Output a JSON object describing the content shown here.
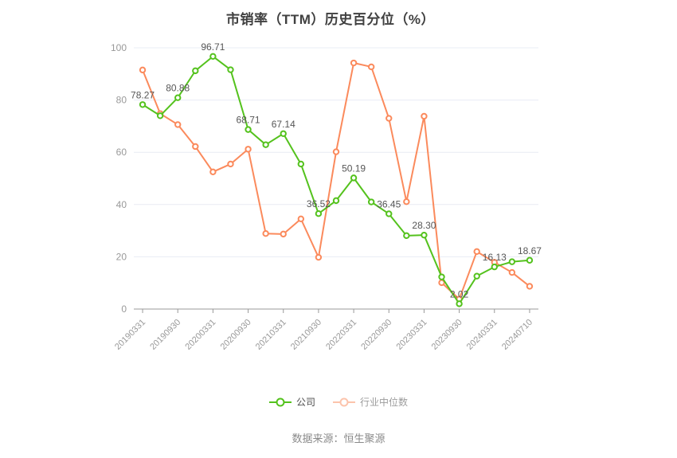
{
  "title": "市销率（TTM）历史百分位（%）",
  "source_note": "数据来源：恒生聚源",
  "legend": [
    {
      "label": "公司",
      "color": "#54c21d",
      "muted": false
    },
    {
      "label": "行业中位数",
      "color": "#fb8a5c",
      "muted": true
    }
  ],
  "chart_data": {
    "type": "line",
    "title": "市销率（TTM）历史百分位（%）",
    "xlabel": "",
    "ylabel": "",
    "ylim": [
      0,
      100
    ],
    "yticks": [
      0,
      20,
      40,
      60,
      80,
      100
    ],
    "grid": true,
    "legend_position": "bottom",
    "x_tick_labels": [
      "20190331",
      "20190930",
      "20200331",
      "20200930",
      "20210331",
      "20210930",
      "20220331",
      "20220930",
      "20230331",
      "20230930",
      "20240331",
      "20240710"
    ],
    "x_points_per_tick": 2,
    "n_points": 23,
    "point_label_indices": [
      0,
      2,
      4,
      6,
      8,
      10,
      12,
      14,
      16,
      18,
      20,
      22
    ],
    "series": [
      {
        "name": "行业中位数",
        "color": "#fb8a5c",
        "values": [
          91.5,
          74.8,
          70.6,
          62.2,
          52.5,
          55.5,
          61.2,
          28.9,
          28.7,
          34.5,
          19.8,
          60.2,
          94.2,
          92.7,
          73.0,
          41.1,
          73.8,
          10.1,
          3.8,
          22.0,
          17.9,
          14.0,
          8.7
        ]
      },
      {
        "name": "公司",
        "color": "#54c21d",
        "values": [
          78.27,
          74.0,
          80.88,
          91.2,
          96.71,
          91.6,
          68.71,
          62.9,
          67.14,
          55.5,
          36.52,
          41.5,
          50.19,
          41.0,
          36.45,
          28.1,
          28.3,
          12.3,
          2.02,
          12.6,
          16.13,
          18.1,
          18.67
        ],
        "point_labels": [
          "78.27",
          "80.88",
          "96.71",
          "68.71",
          "67.14",
          "36.52",
          "50.19",
          "36.45",
          "28.30",
          "2.02",
          "16.13",
          "18.67"
        ]
      }
    ],
    "style": {
      "grid_color": "#e8ecf4",
      "axis_color": "#999999",
      "tick_label_color": "#999999",
      "point_label_color": "#565656"
    }
  }
}
